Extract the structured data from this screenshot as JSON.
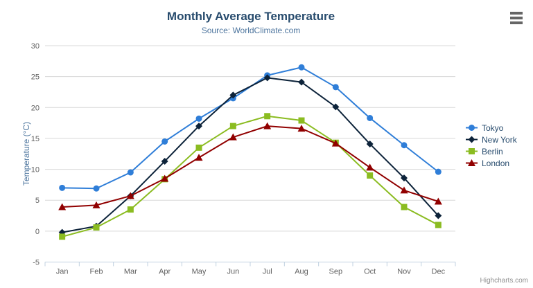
{
  "chart_data": {
    "type": "line",
    "title": "Monthly Average Temperature",
    "subtitle": "Source: WorldClimate.com",
    "xlabel": "",
    "ylabel": "Temperature (°C)",
    "categories": [
      "Jan",
      "Feb",
      "Mar",
      "Apr",
      "May",
      "Jun",
      "Jul",
      "Aug",
      "Sep",
      "Oct",
      "Nov",
      "Dec"
    ],
    "yticks": [
      -5,
      0,
      5,
      10,
      15,
      20,
      25,
      30
    ],
    "ylim": [
      -5,
      30
    ],
    "grid": true,
    "legend_position": "right-middle-vertical",
    "series": [
      {
        "name": "Tokyo",
        "color": "#2f7ed8",
        "marker": "circle",
        "values": [
          7.0,
          6.9,
          9.5,
          14.5,
          18.2,
          21.5,
          25.2,
          26.5,
          23.3,
          18.3,
          13.9,
          9.6
        ]
      },
      {
        "name": "New York",
        "color": "#0d233a",
        "marker": "diamond",
        "values": [
          -0.2,
          0.8,
          5.7,
          11.3,
          17.0,
          22.0,
          24.8,
          24.1,
          20.1,
          14.1,
          8.6,
          2.5
        ]
      },
      {
        "name": "Berlin",
        "color": "#8bbc21",
        "marker": "square",
        "values": [
          -0.9,
          0.6,
          3.5,
          8.4,
          13.5,
          17.0,
          18.6,
          17.9,
          14.3,
          9.0,
          3.9,
          1.0
        ]
      },
      {
        "name": "London",
        "color": "#910000",
        "marker": "triangle",
        "values": [
          3.9,
          4.2,
          5.7,
          8.5,
          11.9,
          15.2,
          17.0,
          16.6,
          14.2,
          10.3,
          6.6,
          4.8
        ]
      }
    ]
  },
  "credits": {
    "label": "Highcharts.com"
  },
  "icons": {
    "context_menu": "hamburger-menu-icon"
  },
  "colors": {
    "title_text": "#274b6d",
    "subtitle_text": "#4d759e",
    "axis_label_text": "#606060",
    "y_axis_title_text": "#4d759e",
    "legend_text": "#274b6d",
    "gridline": "#d8d8d8",
    "axis_line": "#c0d0e0",
    "credits_text": "#909090",
    "menu_icon": "#666666",
    "background": "#ffffff"
  }
}
